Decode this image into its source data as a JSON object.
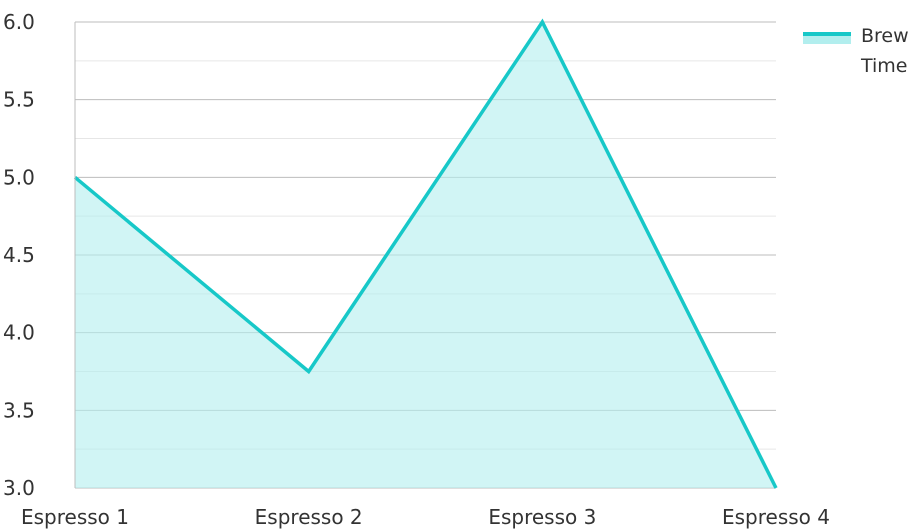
{
  "chart_data": {
    "type": "area",
    "categories": [
      "Espresso 1",
      "Espresso 2",
      "Espresso 3",
      "Espresso 4"
    ],
    "series": [
      {
        "name": "Brew Time",
        "values": [
          5.0,
          3.75,
          6.0,
          3.0
        ]
      }
    ],
    "ylim": [
      3.0,
      6.0
    ],
    "yticks": [
      "3.0",
      "3.5",
      "4.0",
      "4.5",
      "5.0",
      "5.5",
      "6.0"
    ],
    "grid": true,
    "legend": {
      "position": "top-right",
      "lines": [
        "Brew",
        "Time"
      ]
    },
    "colors": {
      "line": "#17C8C8",
      "fill": "#B2EEEE",
      "grid_major": "#BDBDBD",
      "grid_minor": "#E6E6E6",
      "axis": "#BDBDBD"
    }
  }
}
